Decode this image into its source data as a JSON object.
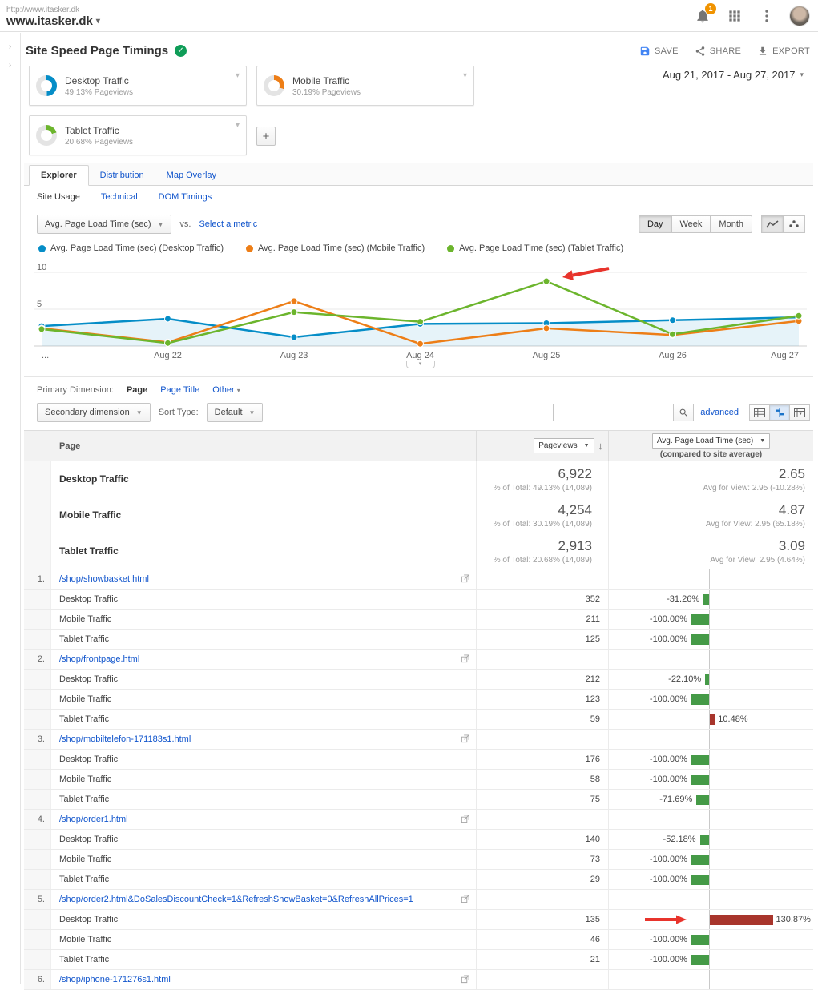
{
  "topbar": {
    "url_small": "http://www.itasker.dk",
    "account_label": "www.itasker.dk",
    "notification_count": "1"
  },
  "header": {
    "title": "Site Speed Page Timings",
    "actions": [
      {
        "label": "SAVE"
      },
      {
        "label": "SHARE"
      },
      {
        "label": "EXPORT"
      }
    ],
    "date_range": "Aug 21, 2017 - Aug 27, 2017"
  },
  "segments": [
    {
      "name": "Desktop Traffic",
      "detail": "49.13% Pageviews",
      "pct": 49.13,
      "color": "#058dc7"
    },
    {
      "name": "Mobile Traffic",
      "detail": "30.19% Pageviews",
      "pct": 30.19,
      "color": "#ed7e17"
    },
    {
      "name": "Tablet Traffic",
      "detail": "20.68% Pageviews",
      "pct": 20.68,
      "color": "#6cb52d"
    }
  ],
  "add_segment_label": "+",
  "tabs": [
    "Explorer",
    "Distribution",
    "Map Overlay"
  ],
  "subtabs": [
    "Site Usage",
    "Technical",
    "DOM Timings"
  ],
  "metric_bar": {
    "metric": "Avg. Page Load Time (sec)",
    "vs": "vs.",
    "select_metric": "Select a metric",
    "granularity": [
      "Day",
      "Week",
      "Month"
    ]
  },
  "chart_data": {
    "type": "line",
    "title": "Avg. Page Load Time (sec) by day",
    "x_labels": [
      "...",
      "Aug 22",
      "Aug 23",
      "Aug 24",
      "Aug 25",
      "Aug 26",
      "Aug 27"
    ],
    "ylim": [
      0,
      10
    ],
    "yticks": [
      5,
      10
    ],
    "grid": true,
    "legend_position": "top",
    "series": [
      {
        "name": "Avg. Page Load Time (sec) (Desktop Traffic)",
        "color": "#058dc7",
        "area": true,
        "values": [
          2.7,
          3.7,
          1.2,
          3.0,
          3.1,
          3.5,
          3.9
        ]
      },
      {
        "name": "Avg. Page Load Time (sec) (Mobile Traffic)",
        "color": "#ed7e17",
        "area": false,
        "values": [
          2.4,
          0.5,
          6.1,
          0.3,
          2.4,
          1.5,
          3.4
        ]
      },
      {
        "name": "Avg. Page Load Time (sec) (Tablet Traffic)",
        "color": "#6cb52d",
        "area": false,
        "values": [
          2.3,
          0.4,
          4.6,
          3.3,
          8.8,
          1.6,
          4.1
        ]
      }
    ],
    "annotation_arrow_at": {
      "x": "Aug 25",
      "series": "Avg. Page Load Time (sec) (Tablet Traffic)"
    }
  },
  "dimension_bar": {
    "label": "Primary Dimension:",
    "items": [
      "Page",
      "Page Title",
      "Other"
    ]
  },
  "controls": {
    "secondary_dimension": "Secondary dimension",
    "sort_type_label": "Sort Type:",
    "sort_type_value": "Default",
    "advanced_label": "advanced",
    "search_value": ""
  },
  "colors": {
    "bar_negative_green": "#459a47",
    "bar_positive_red": "#a8352c",
    "annotation_red": "#e8342c",
    "link_blue": "#1155cc"
  },
  "table": {
    "columns": {
      "page": "Page",
      "pageviews": "Pageviews",
      "metric": "Avg. Page Load Time (sec)",
      "metric_sub": "(compared to site average)"
    },
    "summary": [
      {
        "name": "Desktop Traffic",
        "pageviews": "6,922",
        "pv_sub": "% of Total: 49.13% (14,089)",
        "metric": "2.65",
        "metric_sub": "Avg for View: 2.95 (-10.28%)"
      },
      {
        "name": "Mobile Traffic",
        "pageviews": "4,254",
        "pv_sub": "% of Total: 30.19% (14,089)",
        "metric": "4.87",
        "metric_sub": "Avg for View: 2.95 (65.18%)"
      },
      {
        "name": "Tablet Traffic",
        "pageviews": "2,913",
        "pv_sub": "% of Total: 20.68% (14,089)",
        "metric": "3.09",
        "metric_sub": "Avg for View: 2.95 (4.64%)"
      }
    ],
    "rows": [
      {
        "index": "1.",
        "url": "/shop/showbasket.html",
        "segments": [
          {
            "name": "Desktop Traffic",
            "pageviews": "352",
            "delta": -31.26,
            "delta_label": "-31.26%"
          },
          {
            "name": "Mobile Traffic",
            "pageviews": "211",
            "delta": -100,
            "delta_label": "-100.00%"
          },
          {
            "name": "Tablet Traffic",
            "pageviews": "125",
            "delta": -100,
            "delta_label": "-100.00%"
          }
        ]
      },
      {
        "index": "2.",
        "url": "/shop/frontpage.html",
        "segments": [
          {
            "name": "Desktop Traffic",
            "pageviews": "212",
            "delta": -22.1,
            "delta_label": "-22.10%"
          },
          {
            "name": "Mobile Traffic",
            "pageviews": "123",
            "delta": -100,
            "delta_label": "-100.00%"
          },
          {
            "name": "Tablet Traffic",
            "pageviews": "59",
            "delta": 10.48,
            "delta_label": "10.48%"
          }
        ]
      },
      {
        "index": "3.",
        "url": "/shop/mobiltelefon-171183s1.html",
        "segments": [
          {
            "name": "Desktop Traffic",
            "pageviews": "176",
            "delta": -100,
            "delta_label": "-100.00%"
          },
          {
            "name": "Mobile Traffic",
            "pageviews": "58",
            "delta": -100,
            "delta_label": "-100.00%"
          },
          {
            "name": "Tablet Traffic",
            "pageviews": "75",
            "delta": -71.69,
            "delta_label": "-71.69%"
          }
        ]
      },
      {
        "index": "4.",
        "url": "/shop/order1.html",
        "segments": [
          {
            "name": "Desktop Traffic",
            "pageviews": "140",
            "delta": -52.18,
            "delta_label": "-52.18%"
          },
          {
            "name": "Mobile Traffic",
            "pageviews": "73",
            "delta": -100,
            "delta_label": "-100.00%"
          },
          {
            "name": "Tablet Traffic",
            "pageviews": "29",
            "delta": -100,
            "delta_label": "-100.00%"
          }
        ]
      },
      {
        "index": "5.",
        "url": "/shop/order2.html&DoSalesDiscountCheck=1&RefreshShowBasket=0&RefreshAllPrices=1",
        "segments": [
          {
            "name": "Desktop Traffic",
            "pageviews": "135",
            "delta": 130.87,
            "delta_label": "130.87%",
            "arrow": true
          },
          {
            "name": "Mobile Traffic",
            "pageviews": "46",
            "delta": -100,
            "delta_label": "-100.00%"
          },
          {
            "name": "Tablet Traffic",
            "pageviews": "21",
            "delta": -100,
            "delta_label": "-100.00%"
          }
        ]
      },
      {
        "index": "6.",
        "url": "/shop/iphone-171276s1.html",
        "segments": []
      }
    ]
  }
}
